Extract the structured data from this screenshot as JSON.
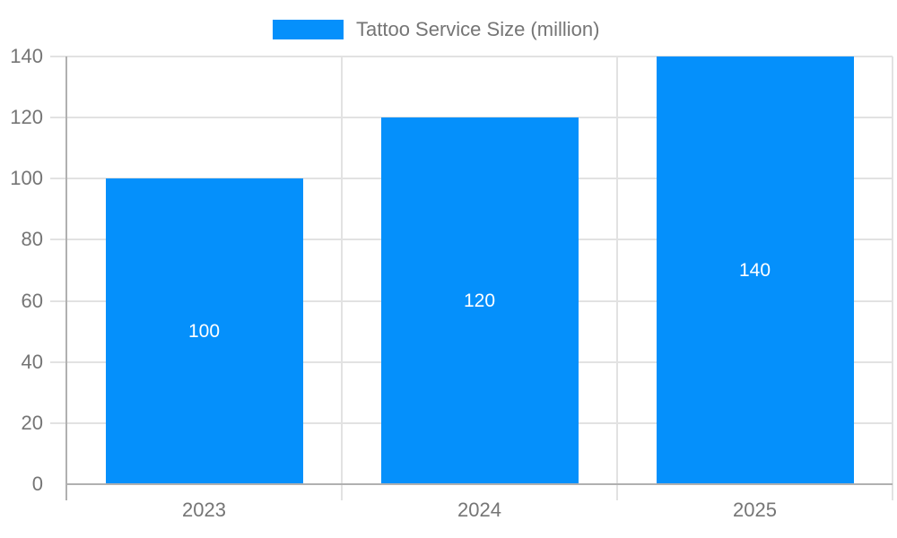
{
  "chart_data": {
    "type": "bar",
    "title": "",
    "legend": {
      "label": "Tattoo Service Size (million)",
      "position": "top"
    },
    "categories": [
      "2023",
      "2024",
      "2025"
    ],
    "series": [
      {
        "name": "Tattoo Service Size (million)",
        "values": [
          100,
          120,
          140
        ]
      }
    ],
    "value_labels": [
      "100",
      "120",
      "140"
    ],
    "xlabel": "",
    "ylabel": "",
    "ylim": [
      0,
      140
    ],
    "yticks": [
      0,
      20,
      40,
      60,
      80,
      100,
      120,
      140
    ],
    "grid": true,
    "colors": {
      "bar": "#0590fb",
      "value_label": "#ffffff",
      "axis_text": "#757575",
      "legend_text": "#757575",
      "gridline": "#e2e2e2",
      "axis_line": "#b0b0b0"
    }
  }
}
